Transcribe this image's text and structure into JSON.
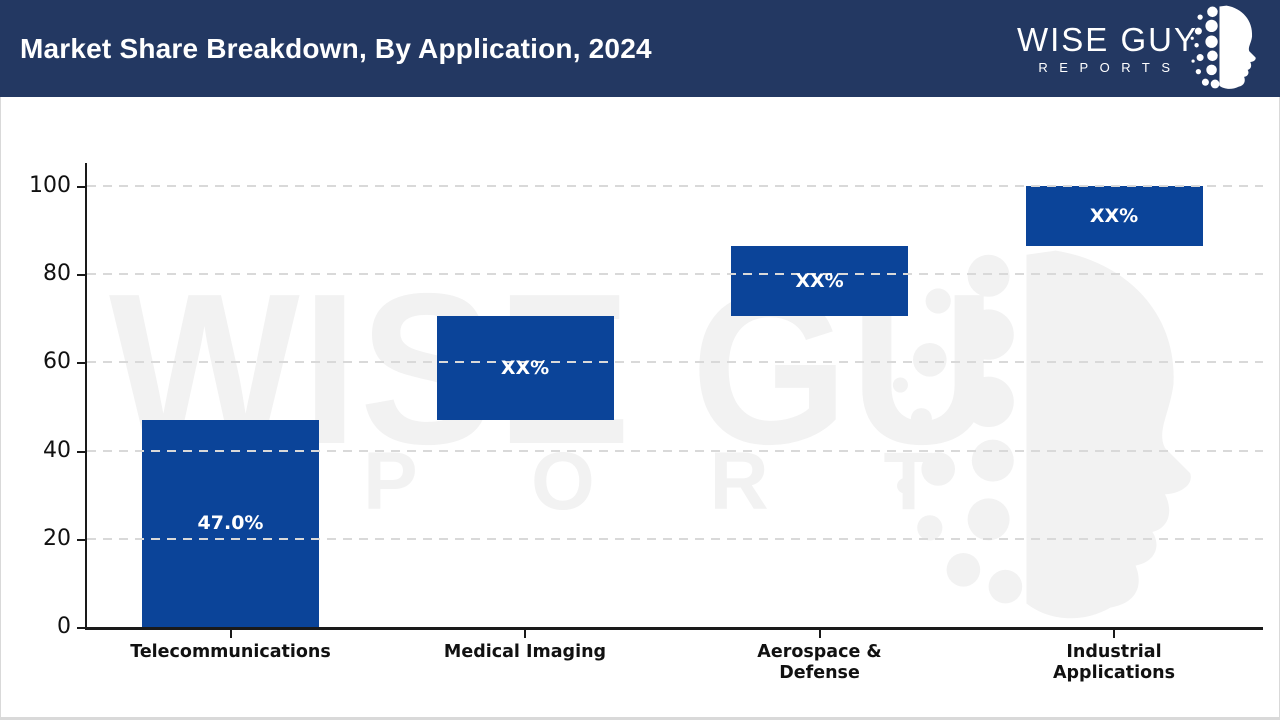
{
  "header": {
    "title": "Market Share Breakdown, By Application, 2024",
    "bg_color": "#233862",
    "logo_line1": "WISE GUY",
    "logo_line2": "REPORTS"
  },
  "watermark": {
    "line1": "WISE GU",
    "line2": "P O R T S"
  },
  "chart_data": {
    "type": "bar",
    "variant": "waterfall",
    "title": "Market Share Breakdown, By Application, 2024",
    "categories": [
      "Telecommunications",
      "Medical Imaging",
      "Aerospace &\nDefense",
      "Industrial\nApplications"
    ],
    "segments": [
      {
        "category": "Telecommunications",
        "start": 0,
        "end": 47,
        "label": "47.0%"
      },
      {
        "category": "Medical Imaging",
        "start": 47,
        "end": 70.5,
        "label": "XX%"
      },
      {
        "category": "Aerospace & Defense",
        "start": 70.5,
        "end": 86.4,
        "label": "XX%"
      },
      {
        "category": "Industrial Applications",
        "start": 86.4,
        "end": 100,
        "label": "XX%"
      }
    ],
    "y_ticks": [
      0,
      20,
      40,
      60,
      80,
      100
    ],
    "ylim": [
      0,
      105
    ],
    "xlabel": "",
    "ylabel": "",
    "bar_color": "#0b4499",
    "bar_label_color": "#ffffff",
    "grid": {
      "axis": "y",
      "style": "dashed",
      "color": "#d9d9d9"
    },
    "legend": "none"
  }
}
